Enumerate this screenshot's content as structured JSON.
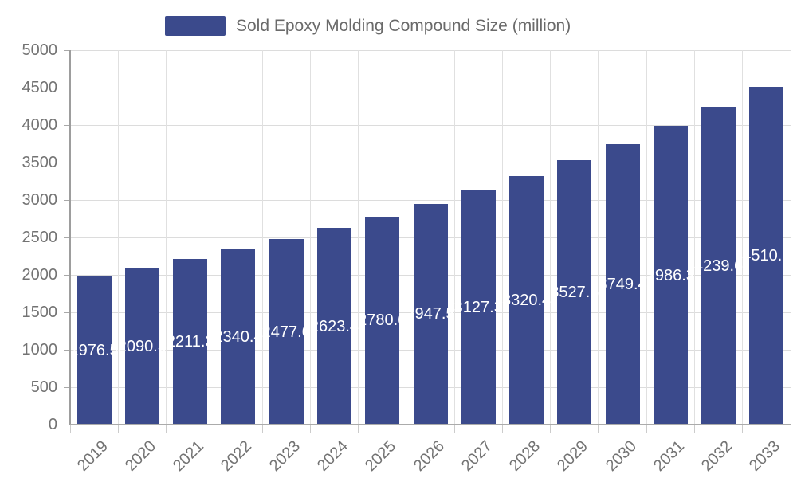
{
  "legend": {
    "label": "Sold Epoxy Molding Compound Size (million)",
    "swatch_color": "#3B4A8C"
  },
  "chart_data": {
    "type": "bar",
    "title": "",
    "xlabel": "",
    "ylabel": "",
    "categories": [
      "2019",
      "2020",
      "2021",
      "2022",
      "2023",
      "2024",
      "2025",
      "2026",
      "2027",
      "2028",
      "2029",
      "2030",
      "2031",
      "2032",
      "2033"
    ],
    "series": [
      {
        "name": "Sold Epoxy Molding Compound Size (million)",
        "color": "#3B4A8C",
        "values": [
          1976.5,
          2090.3,
          2211.3,
          2340.4,
          2477.6,
          2623.4,
          2780.6,
          2947.5,
          3127.3,
          3320.4,
          3527.6,
          3749.4,
          3986.3,
          4239.6,
          4510.5
        ],
        "value_labels": [
          "1976.5",
          "2090.3",
          "2211.3",
          "2340.4",
          "2477.6",
          "2623.4",
          "2780.6",
          "2947.5",
          "3127.3",
          "3320.4",
          "3527.6",
          "3749.4",
          "3986.3",
          "4239.6",
          "4510.5"
        ]
      }
    ],
    "ylim": [
      0,
      5000
    ],
    "yticks": [
      "0",
      "500",
      "1000",
      "1500",
      "2000",
      "2500",
      "3000",
      "3500",
      "4000",
      "4500",
      "5000"
    ],
    "grid": true,
    "legend_position": "top",
    "x_tick_label_rotation_deg": 45,
    "value_label_position": "inside-middle",
    "value_label_color": "#ffffff",
    "axis_text_color": "#737373"
  }
}
